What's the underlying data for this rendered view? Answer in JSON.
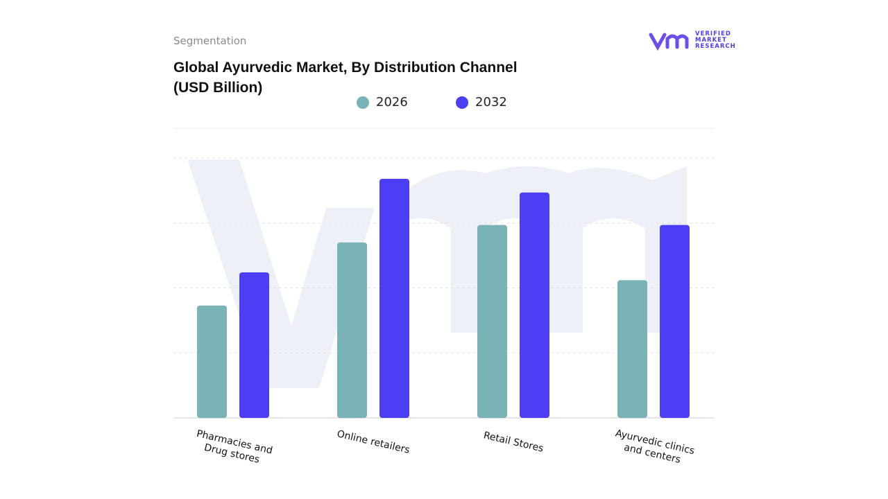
{
  "header": {
    "section": "Segmentation",
    "logo": "VERIFIED MARKET RESEARCH"
  },
  "chart_data": {
    "type": "bar",
    "title": "Global Ayurvedic Market, By Distribution Channel (USD Billion)",
    "categories": [
      "Pharmacies and Drug stores",
      "Online retailers",
      "Retail Stores",
      "Ayurvedic clinics and centers"
    ],
    "series": [
      {
        "name": "2026",
        "color": "#7ab3b5",
        "values": [
          1.73,
          2.7,
          2.97,
          2.12
        ]
      },
      {
        "name": "2032",
        "color": "#4b3ef5",
        "values": [
          2.24,
          3.68,
          3.47,
          2.97
        ]
      }
    ],
    "ylim": [
      0,
      4
    ],
    "yticks": [
      1,
      2,
      3,
      4
    ],
    "grid": true
  }
}
